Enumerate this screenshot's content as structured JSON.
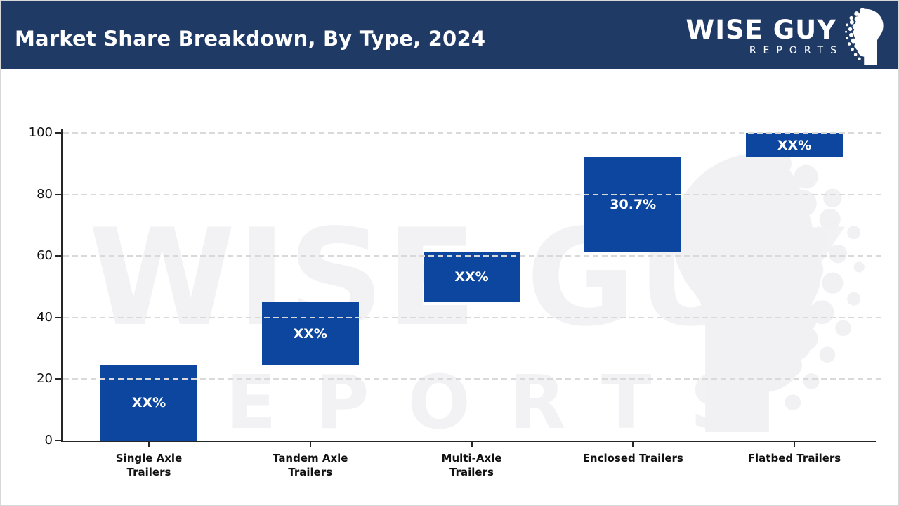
{
  "header": {
    "title": "Market Share Breakdown, By Type, 2024",
    "logo": {
      "wordmark": "WISE GUY",
      "subtext": "REPORTS"
    }
  },
  "watermark": {
    "wordmark": "WISE GUY",
    "subtext": "REPORTS"
  },
  "colors": {
    "header_bg": "#203a66",
    "bar": "#0c469e",
    "grid": "#d9d9d9",
    "axis": "#262626",
    "tick_text": "#111111",
    "title_text": "#ffffff",
    "bar_label_text": "#ffffff",
    "watermark": "#f2f2f4",
    "page_border": "#d8d8d8"
  },
  "chart_data": {
    "type": "bar",
    "subtype": "waterfall",
    "title": "Market Share Breakdown, By Type, 2024",
    "categories": [
      "Single Axle Trailers",
      "Tandem Axle Trailers",
      "Multi-Axle Trailers",
      "Enclosed Trailers",
      "Flatbed Trailers"
    ],
    "categories_wrapped": [
      [
        "Single Axle",
        "Trailers"
      ],
      [
        "Tandem Axle",
        "Trailers"
      ],
      [
        "Multi-Axle",
        "Trailers"
      ],
      [
        "Enclosed Trailers"
      ],
      [
        "Flatbed Trailers"
      ]
    ],
    "series": [
      {
        "name": "Market Share (%)",
        "segments": [
          {
            "category": "Single Axle Trailers",
            "label": "XX%",
            "start": 0,
            "end": 24.5
          },
          {
            "category": "Tandem Axle Trailers",
            "label": "XX%",
            "start": 24.6,
            "end": 44.9
          },
          {
            "category": "Multi-Axle Trailers",
            "label": "XX%",
            "start": 44.9,
            "end": 61.4
          },
          {
            "category": "Enclosed Trailers",
            "label": "30.7%",
            "start": 61.4,
            "end": 92.1
          },
          {
            "category": "Flatbed Trailers",
            "label": "XX%",
            "start": 92.1,
            "end": 99.9
          }
        ]
      }
    ],
    "values_masked": true,
    "shown_value": {
      "category": "Enclosed Trailers",
      "value": 30.7
    },
    "xlabel": "",
    "ylabel": "",
    "ylim": [
      0,
      100
    ],
    "yticks": [
      0,
      20,
      40,
      60,
      80,
      100
    ],
    "grid": "horizontal-dashed",
    "legend": null,
    "bar_color": "#0c469e",
    "bar_label_color": "#ffffff"
  }
}
